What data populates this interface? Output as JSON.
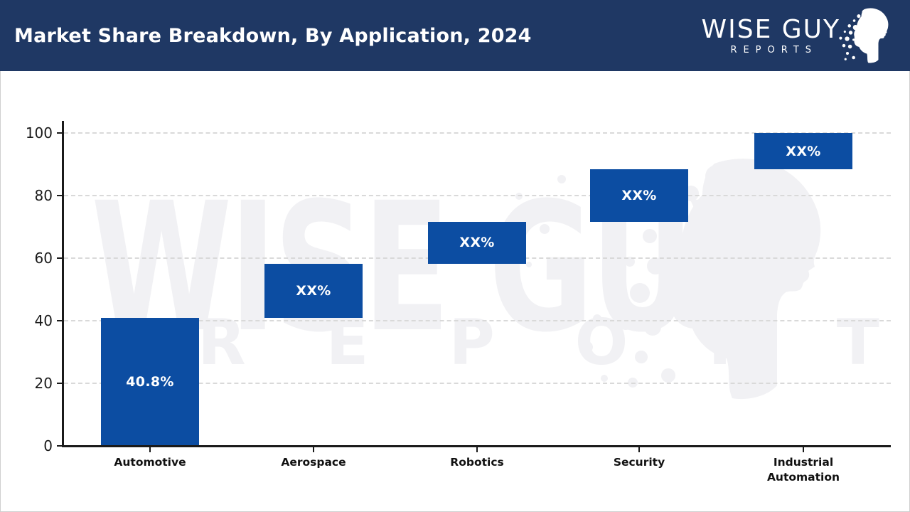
{
  "header": {
    "title": "Market Share Breakdown, By Application, 2024",
    "logo": {
      "line1": "WISE GUY",
      "line2": "REPORTS"
    }
  },
  "watermark": {
    "line1": "WISE GUY",
    "line2": "REPORTS"
  },
  "chart_data": {
    "type": "bar",
    "subtype": "waterfall",
    "title": "Market Share Breakdown, By Application, 2024",
    "categories": [
      "Automotive",
      "Aerospace",
      "Robotics",
      "Security",
      "Industrial Automation"
    ],
    "segments": [
      {
        "category": "Automotive",
        "start": 0,
        "end": 40.8,
        "label": "40.8%"
      },
      {
        "category": "Aerospace",
        "start": 40.8,
        "end": 58.2,
        "label": "XX%"
      },
      {
        "category": "Robotics",
        "start": 58.2,
        "end": 71.6,
        "label": "XX%"
      },
      {
        "category": "Security",
        "start": 71.6,
        "end": 88.4,
        "label": "XX%"
      },
      {
        "category": "Industrial Automation",
        "start": 88.4,
        "end": 100,
        "label": "XX%"
      }
    ],
    "y_ticks": [
      0,
      20,
      40,
      60,
      80,
      100
    ],
    "ylim": [
      0,
      100
    ],
    "xlabel": "",
    "ylabel": "",
    "grid": true,
    "gridline_style": "dashed",
    "legend": "none"
  },
  "colors": {
    "header_bg": "#1f3864",
    "bar": "#0c4da2",
    "bar_label": "#ffffff",
    "watermark": "#f1f1f4",
    "axis": "#1a1a1a",
    "gridline": "#d9d9d9"
  }
}
